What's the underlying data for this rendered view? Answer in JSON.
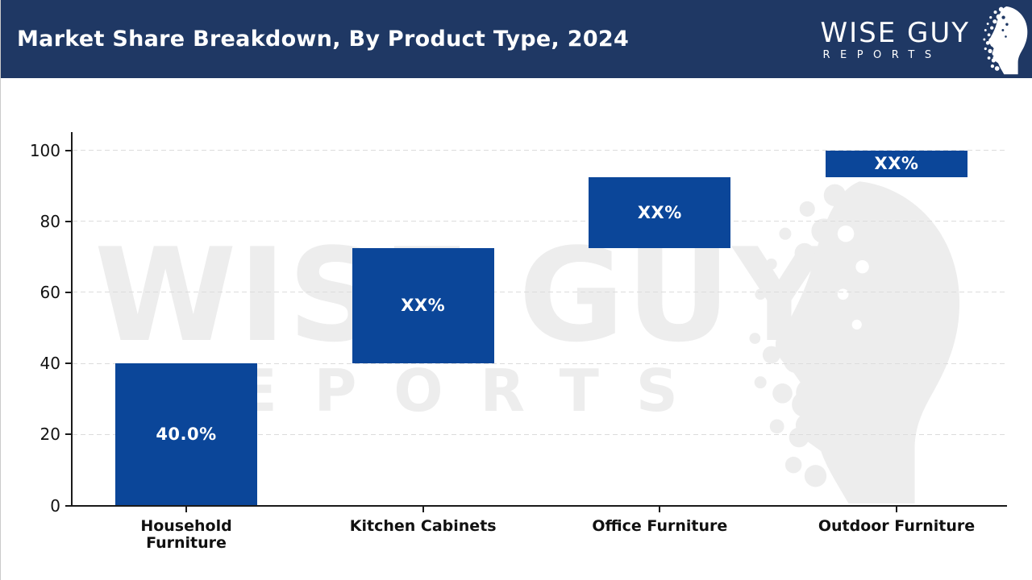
{
  "header": {
    "title": "Market Share Breakdown, By Product Type, 2024",
    "logo": {
      "wordmark": "WISE GUY",
      "subtext": "REPORTS"
    }
  },
  "watermark": {
    "line1": "WISE GUY",
    "line2": "REPORTS"
  },
  "chart_data": {
    "type": "bar",
    "subtype": "stacked-waterfall",
    "title": "Market Share Breakdown, By Product Type, 2024",
    "categories": [
      "Household\nFurniture",
      "Kitchen Cabinets",
      "Office Furniture",
      "Outdoor Furniture"
    ],
    "segments": [
      {
        "category": "Household Furniture",
        "start": 0,
        "end": 40,
        "label": "40.0%"
      },
      {
        "category": "Kitchen Cabinets",
        "start": 40,
        "end": 72.5,
        "label": "XX%"
      },
      {
        "category": "Office Furniture",
        "start": 72.5,
        "end": 92.5,
        "label": "XX%"
      },
      {
        "category": "Outdoor Furniture",
        "start": 92.5,
        "end": 100,
        "label": "XX%"
      }
    ],
    "yticks": [
      0,
      20,
      40,
      60,
      80,
      100
    ],
    "ylim": [
      0,
      105
    ],
    "xlabel": "",
    "ylabel": "",
    "legend": null,
    "grid": "horizontal-dashed",
    "colors": {
      "bar": "#0b4699",
      "grid": "#dcdcdc",
      "axis": "#1a1a1a",
      "bar_label": "#ffffff",
      "header_bg": "#1f3864",
      "watermark": "#ededed"
    }
  }
}
